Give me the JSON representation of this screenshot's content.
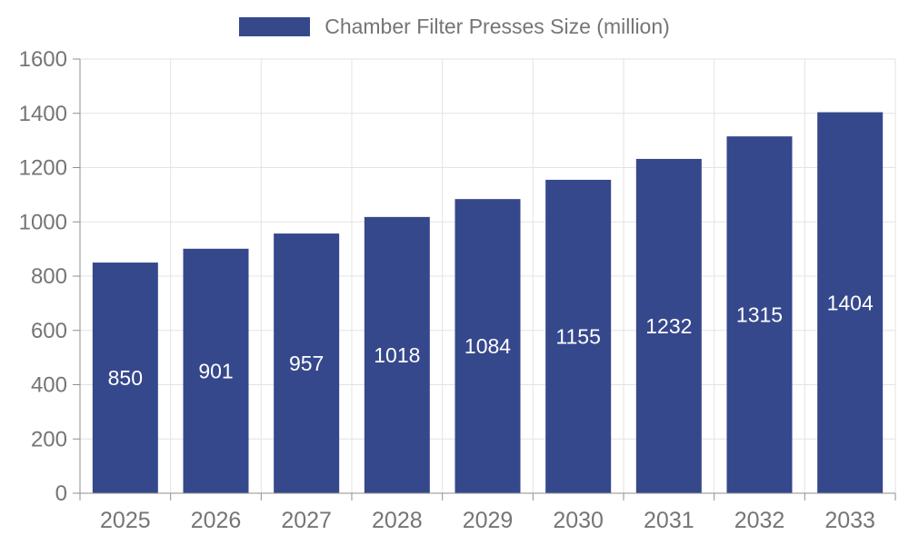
{
  "chart_data": {
    "type": "bar",
    "title": "Chamber Filter Presses Size (million)",
    "categories": [
      "2025",
      "2026",
      "2027",
      "2028",
      "2029",
      "2030",
      "2031",
      "2032",
      "2033"
    ],
    "values": [
      850,
      901,
      957,
      1018,
      1084,
      1155,
      1232,
      1315,
      1404
    ],
    "xlabel": "",
    "ylabel": "",
    "ylim": [
      0,
      1600
    ],
    "ytick_step": 200,
    "ytick_labels": [
      "0",
      "200",
      "400",
      "600",
      "800",
      "1000",
      "1200",
      "1400",
      "1600"
    ],
    "grid": true,
    "legend_position": "top-center",
    "bar_color": "#36488c",
    "bar_label_color": "#ffffff",
    "axis_text_color": "#757575",
    "grid_color": "#e3e3e3",
    "axis_line_color": "#8f8f8f"
  }
}
